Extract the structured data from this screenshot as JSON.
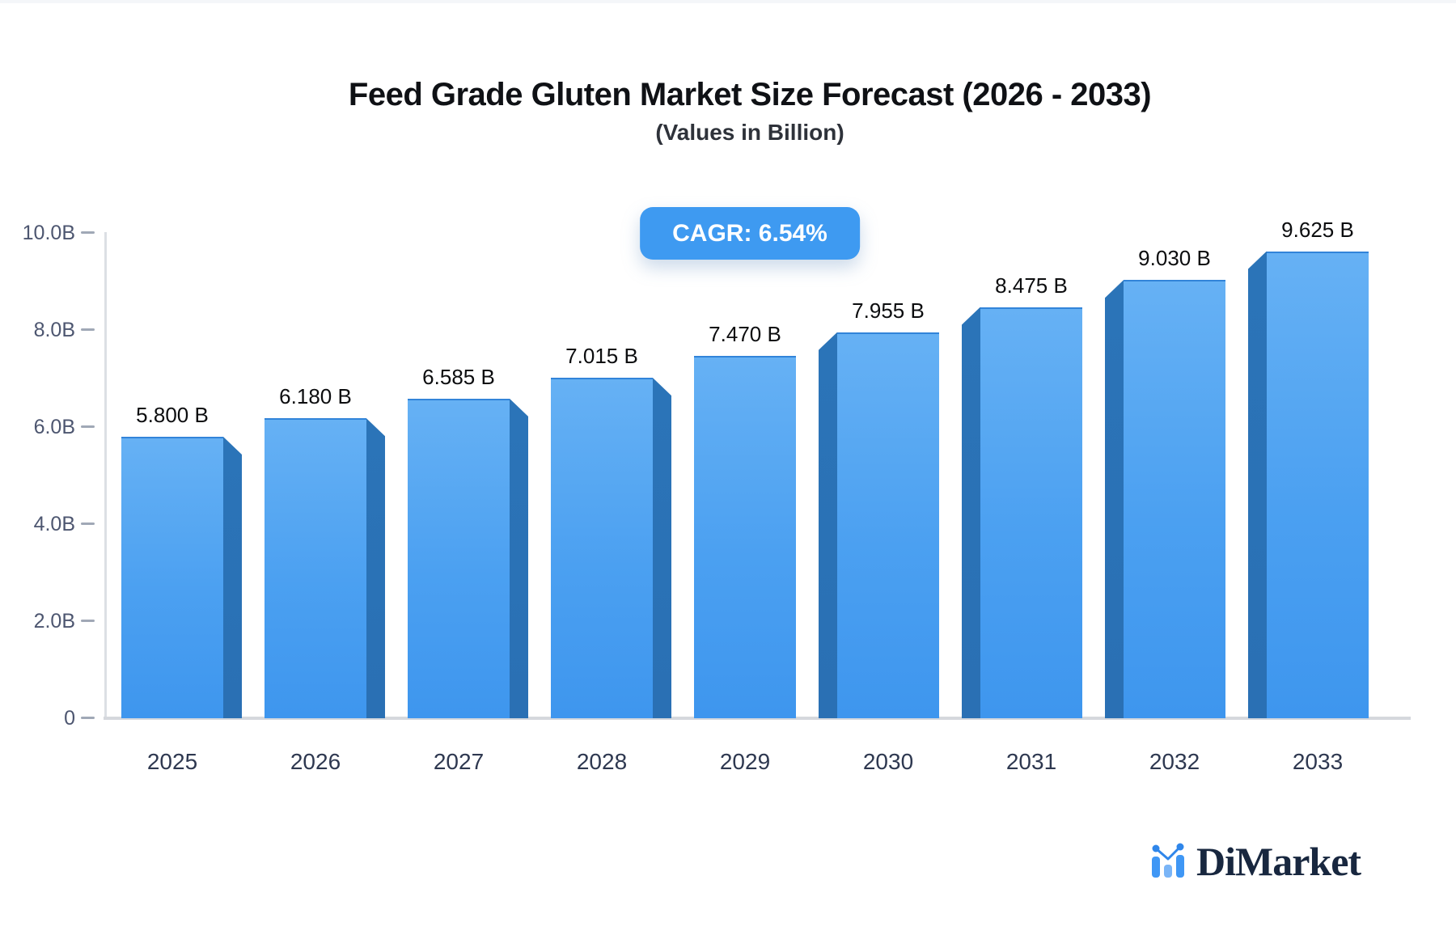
{
  "header": {
    "title": "Feed Grade Gluten Market Size Forecast (2026 - 2033)",
    "subtitle": "(Values in Billion)"
  },
  "badge": {
    "label": "CAGR: 6.54%",
    "bg_color": "#3e9af1",
    "text_color": "#ffffff"
  },
  "chart_data": {
    "type": "bar",
    "title": "Feed Grade Gluten Market Size Forecast (2026 - 2033)",
    "subtitle": "(Values in Billion)",
    "categories": [
      "2025",
      "2026",
      "2027",
      "2028",
      "2029",
      "2030",
      "2031",
      "2032",
      "2033"
    ],
    "values": [
      5.8,
      6.18,
      6.585,
      7.015,
      7.47,
      7.955,
      8.475,
      9.03,
      9.625
    ],
    "value_labels": [
      "5.800 B",
      "6.180 B",
      "6.585 B",
      "7.015 B",
      "7.470 B",
      "7.955 B",
      "8.475 B",
      "9.030 B",
      "9.625 B"
    ],
    "xlabel": "",
    "ylabel": "",
    "ylim": [
      0,
      10
    ],
    "unit": "Billion",
    "grid": false,
    "legend": false,
    "y_ticks": {
      "values": [
        10,
        8,
        6,
        4,
        2,
        0
      ],
      "labels": [
        "10.0B",
        "8.0B",
        "6.0B",
        "4.0B",
        "2.0B",
        "0"
      ]
    },
    "bar_colors": {
      "face_top": "#66b1f4",
      "face_bottom": "#3e96ee",
      "side": "#2b74b8"
    }
  },
  "logo": {
    "text": "DiMarket",
    "text_color": "#18273f",
    "icon": "bar-chart-trend-icon",
    "icon_bar_color": "#3f97f5",
    "icon_bar_light_color": "#7ab5f7",
    "icon_line_color": "#2f86ea"
  }
}
